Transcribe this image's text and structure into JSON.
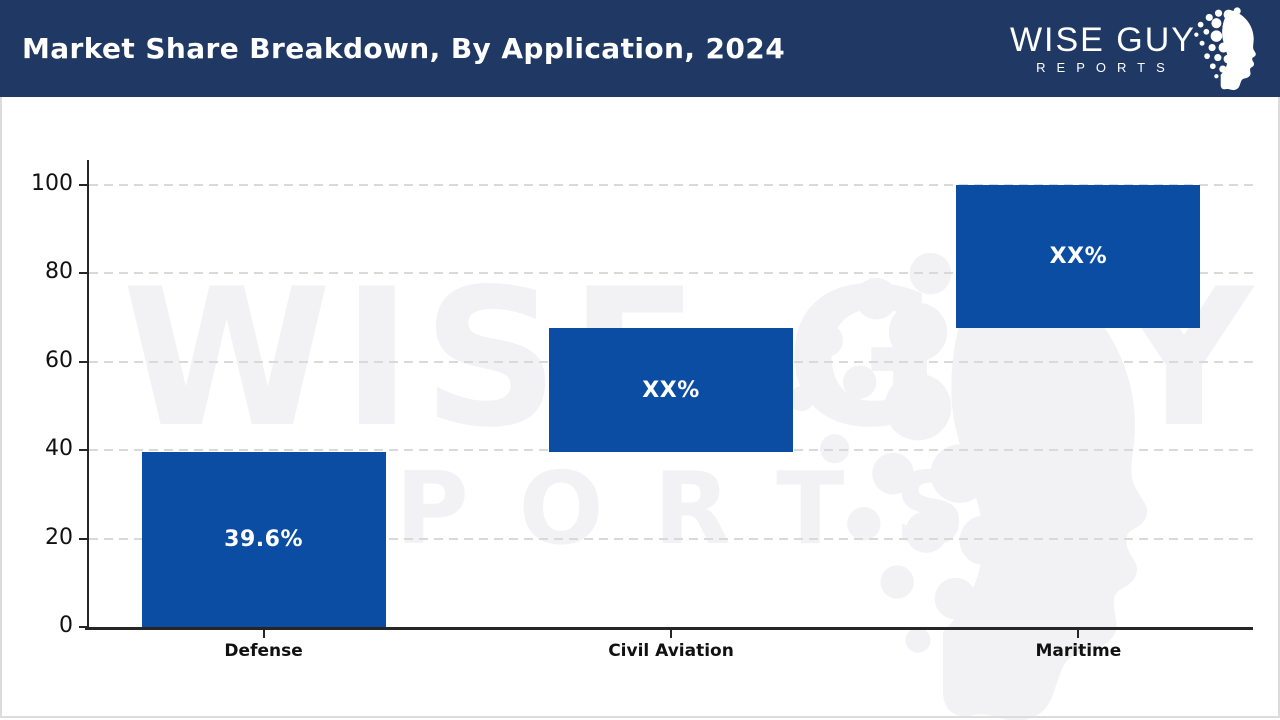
{
  "header": {
    "title": "Market Share Breakdown, By Application, 2024",
    "logo": {
      "primary": "WISE GUY",
      "secondary": "REPORTS"
    }
  },
  "watermark": {
    "primary": "WISE GUY",
    "secondary": "REPORTS"
  },
  "chart_data": {
    "type": "bar",
    "variant": "floating-stacked-breakdown",
    "title": "Market Share Breakdown, By Application, 2024",
    "categories": [
      "Defense",
      "Civil Aviation",
      "Maritime"
    ],
    "segments": [
      {
        "category": "Defense",
        "start": 0,
        "end": 39.6,
        "label": "39.6%"
      },
      {
        "category": "Civil Aviation",
        "start": 39.6,
        "end": 67.6,
        "label": "XX%"
      },
      {
        "category": "Maritime",
        "start": 67.6,
        "end": 100,
        "label": "XX%"
      }
    ],
    "ylim": [
      0,
      100
    ],
    "yticks": [
      0,
      20,
      40,
      60,
      80,
      100
    ],
    "xlabel": "",
    "ylabel": "",
    "grid": {
      "axis": "y",
      "style": "dashed",
      "color": "#d9d9d9"
    },
    "legend": "none",
    "bar_color": "#0b4da2",
    "bar_label_color": "#ffffff"
  },
  "colors": {
    "header_bg": "#1f3864",
    "title_text": "#ffffff",
    "bar": "#0b4da2",
    "axis": "#262626",
    "grid": "#d9d9d9",
    "tick_text": "#111111",
    "watermark": "#f2f2f4",
    "frame_border": "#dcdcdc",
    "background": "#ffffff"
  }
}
